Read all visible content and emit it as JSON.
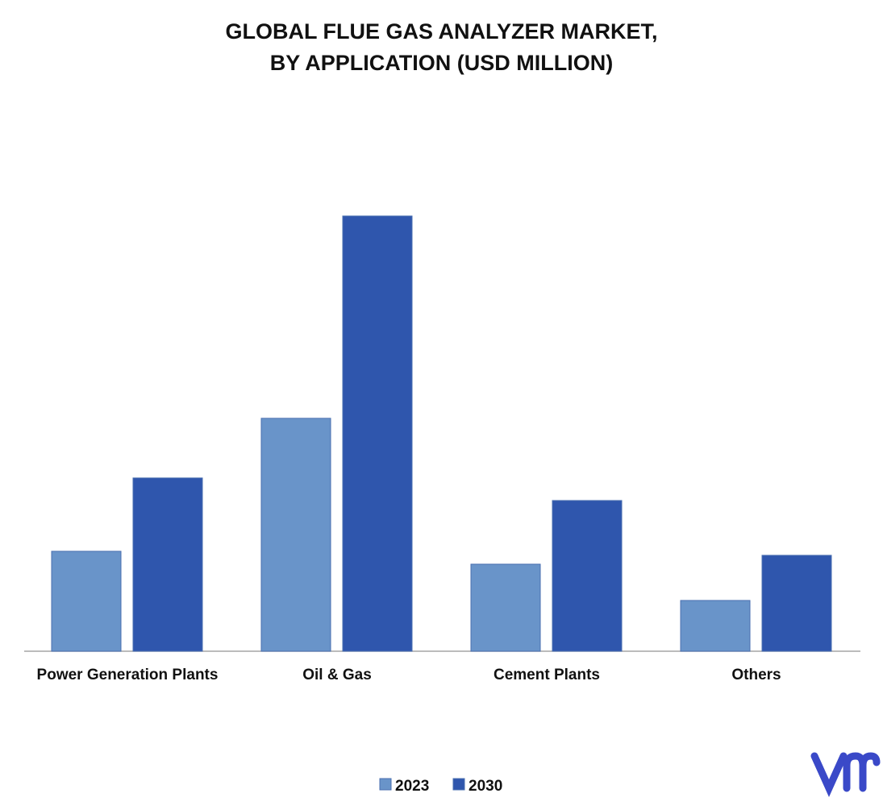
{
  "chart_data": {
    "type": "bar",
    "title": "GLOBAL FLUE GAS ANALYZER MARKET,\nBY APPLICATION (USD MILLION)",
    "categories": [
      "Power Generation Plants",
      "Oil & Gas",
      "Cement Plants",
      "Others"
    ],
    "series": [
      {
        "name": "2023",
        "color": "#6994c9",
        "values": [
          124,
          289,
          108,
          63
        ]
      },
      {
        "name": "2030",
        "color": "#2f56ad",
        "values": [
          215,
          540,
          187,
          119
        ]
      }
    ],
    "ylim": [
      0,
      600
    ]
  }
}
